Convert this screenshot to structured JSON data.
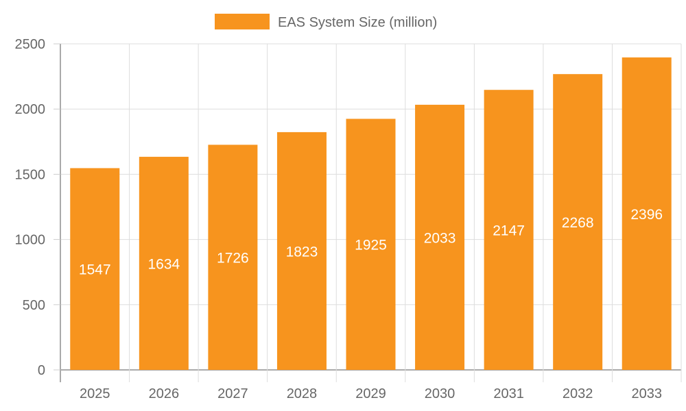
{
  "chart_data": {
    "type": "bar",
    "categories": [
      "2025",
      "2026",
      "2027",
      "2028",
      "2029",
      "2030",
      "2031",
      "2032",
      "2033"
    ],
    "series": [
      {
        "name": "EAS System Size (million)",
        "values": [
          1547,
          1634,
          1726,
          1823,
          1925,
          2033,
          2147,
          2268,
          2396
        ],
        "color": "#F7941E"
      }
    ],
    "ylim": [
      0,
      2500
    ],
    "yticks": [
      0,
      500,
      1000,
      1500,
      2000,
      2500
    ],
    "grid": true,
    "legend": "top-center",
    "data_labels": true
  }
}
